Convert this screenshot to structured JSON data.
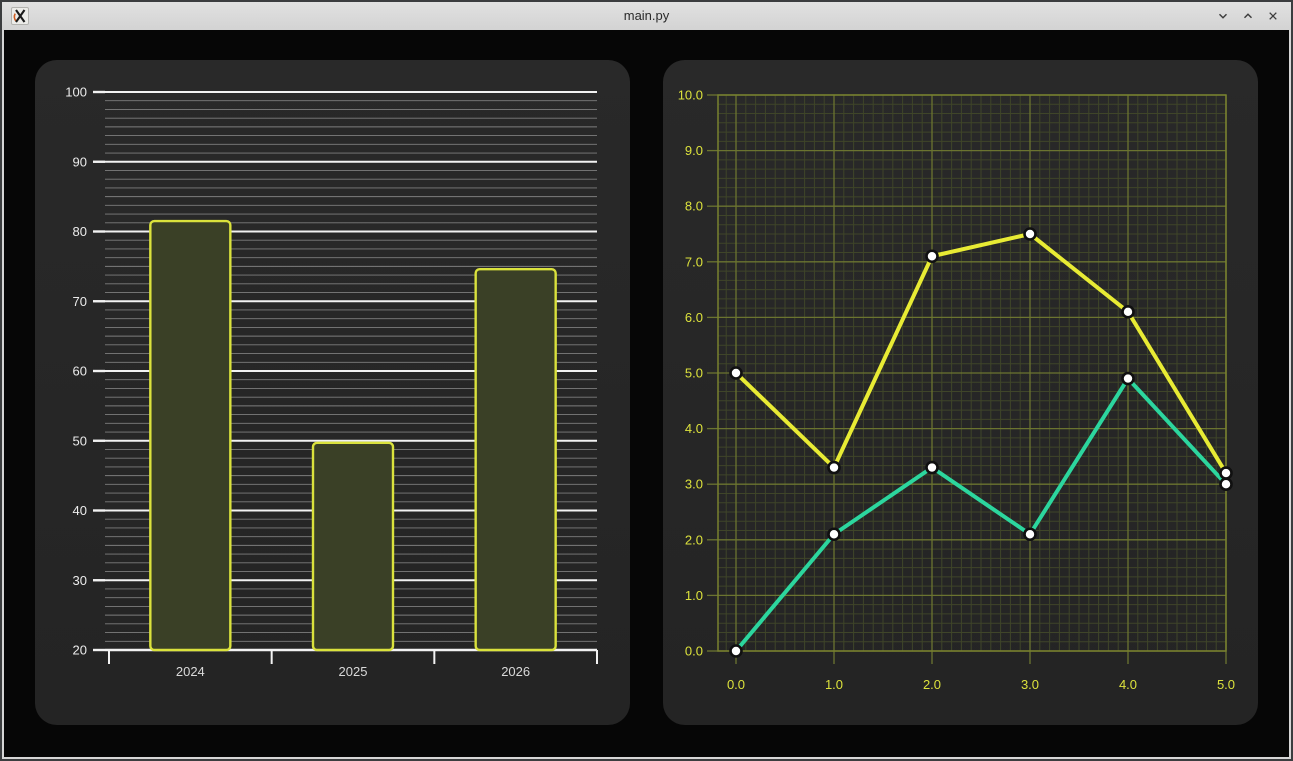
{
  "window": {
    "title": "main.py"
  },
  "chart_data": [
    {
      "type": "bar",
      "title": "",
      "categories": [
        "2024",
        "2025",
        "2026"
      ],
      "values": [
        81.5,
        49.7,
        74.6
      ],
      "ylim": [
        20,
        100
      ],
      "yticks": [
        20,
        30,
        40,
        50,
        60,
        70,
        80,
        90,
        100
      ],
      "ytick_labels": [
        "20",
        "30",
        "40",
        "50",
        "60",
        "70",
        "80",
        "90",
        "100"
      ],
      "minor_step": 1.25,
      "major_step": 10,
      "xlabel": "",
      "ylabel": "",
      "legend": "none",
      "grid": true,
      "colors": {
        "bar_fill": "#3a4026",
        "bar_border": "#dae23c",
        "grid_major": "#f2f2f2",
        "grid_minor": "#7e7e7e",
        "axis": "#f2f2f2",
        "label": "#ececec",
        "category_label": "#d9d9d9"
      }
    },
    {
      "type": "line",
      "title": "",
      "x": [
        0,
        1,
        2,
        3,
        4,
        5
      ],
      "series": [
        {
          "name": "yellow",
          "color": "#e8eb34",
          "values": [
            5.0,
            3.3,
            7.1,
            7.5,
            6.1,
            3.2
          ]
        },
        {
          "name": "green",
          "color": "#2cd69e",
          "values": [
            0.0,
            2.1,
            3.3,
            2.1,
            4.9,
            3.0
          ]
        }
      ],
      "xlim": [
        0,
        5
      ],
      "ylim": [
        0,
        10
      ],
      "xticks": [
        0,
        1,
        2,
        3,
        4,
        5
      ],
      "xtick_labels": [
        "0.0",
        "1.0",
        "2.0",
        "3.0",
        "4.0",
        "5.0"
      ],
      "yticks": [
        0,
        1,
        2,
        3,
        4,
        5,
        6,
        7,
        8,
        9,
        10
      ],
      "ytick_labels": [
        "0.0",
        "1.0",
        "2.0",
        "3.0",
        "4.0",
        "5.0",
        "6.0",
        "7.0",
        "8.0",
        "9.0",
        "10.0"
      ],
      "xlabel": "",
      "ylabel": "",
      "legend": "none",
      "grid": true,
      "marker": {
        "fill": "#ffffff",
        "stroke": "#101010"
      },
      "colors": {
        "border": "#79812f",
        "grid_major": "#6b7430",
        "grid_minor": "#3f4529",
        "label": "#dce23c"
      }
    }
  ]
}
